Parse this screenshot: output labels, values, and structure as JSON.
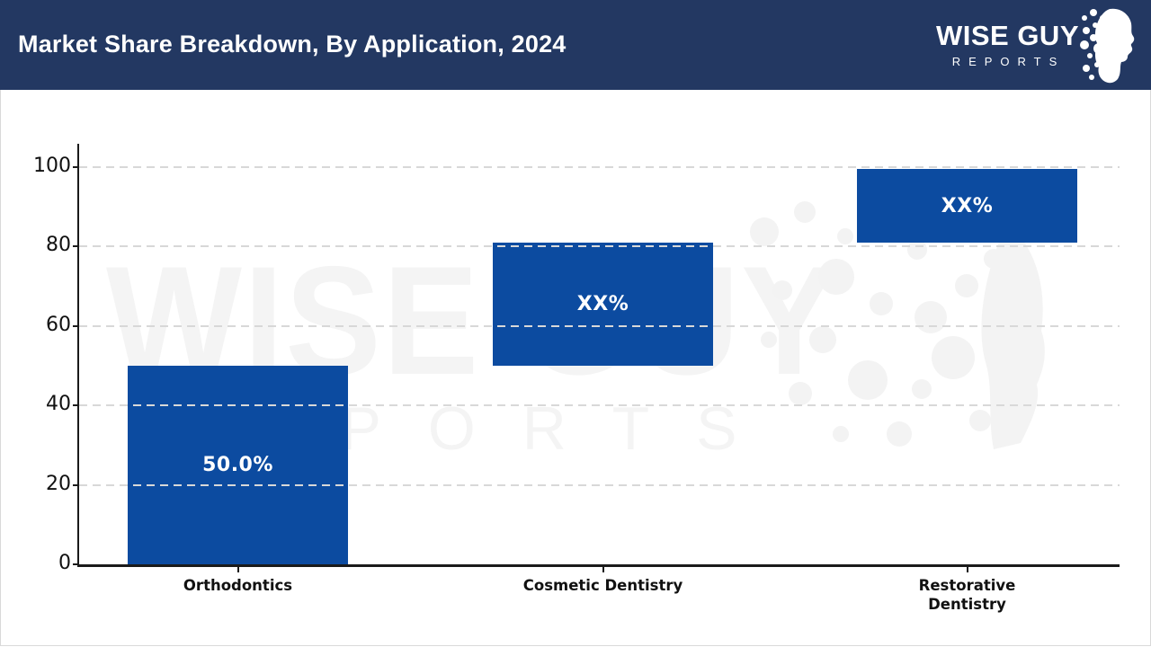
{
  "header": {
    "title": "Market Share Breakdown, By Application, 2024",
    "background": "#233862",
    "logo": {
      "wordmark": "WISE GUY",
      "reports": "REPORTS"
    }
  },
  "watermark": {
    "wordmark": "WISE GUY",
    "reports": "REPORTS"
  },
  "chart_data": {
    "type": "bar",
    "subtype": "waterfall",
    "title": "Market Share Breakdown, By Application, 2024",
    "categories": [
      "Orthodontics",
      "Cosmetic Dentistry",
      "Restorative\nDentistry"
    ],
    "segments": [
      {
        "category": "Orthodontics",
        "start": 0,
        "end": 50,
        "label": "50.0%"
      },
      {
        "category": "Cosmetic Dentistry",
        "start": 50,
        "end": 81,
        "label": "XX%"
      },
      {
        "category": "Restorative Dentistry",
        "start": 81,
        "end": 99.5,
        "label": "XX%"
      }
    ],
    "ylim": [
      0,
      100
    ],
    "yticks": [
      0,
      20,
      40,
      60,
      80,
      100
    ],
    "xlabel": "",
    "ylabel": "",
    "legend": "none",
    "grid": "horizontal-dashed",
    "bar_color": "#0c4ba0",
    "gridline_color": "#d8d8d8",
    "label_color": "#ffffff"
  }
}
